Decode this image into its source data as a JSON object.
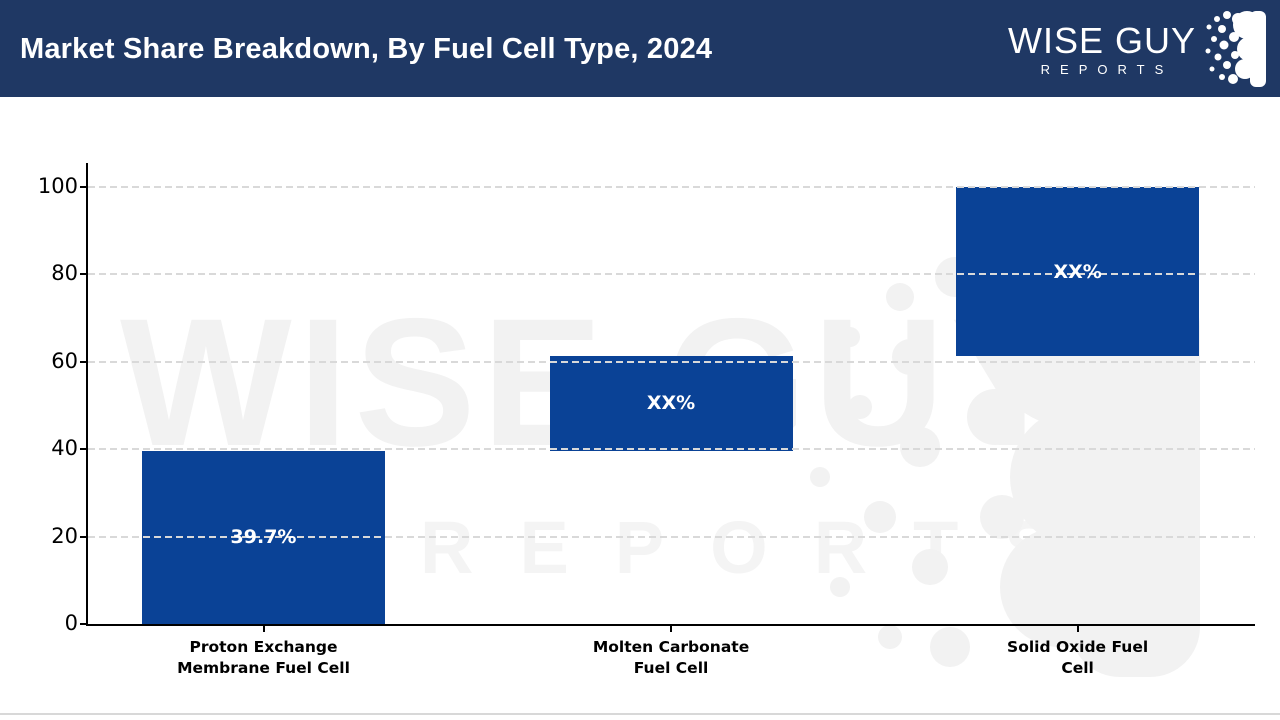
{
  "header": {
    "title": "Market Share Breakdown, By Fuel Cell Type, 2024",
    "logo": {
      "wordmark": "WISE GUY",
      "sub": "REPORTS"
    }
  },
  "watermark": {
    "big": "WISE GUY",
    "sub": "REPORTS"
  },
  "colors": {
    "header_bg": "#1f3864",
    "bar": "#0a4296",
    "grid": "#d9d9d9",
    "axis": "#000000",
    "bar_label_text": "#ffffff",
    "watermark": "#f2f2f2"
  },
  "chart_data": {
    "type": "bar",
    "subtype": "floating-segment-waterfall",
    "title": "Market Share Breakdown, By Fuel Cell Type, 2024",
    "categories": [
      "Proton Exchange Membrane Fuel Cell",
      "Molten Carbonate Fuel Cell",
      "Solid Oxide Fuel Cell"
    ],
    "category_label_lines": [
      [
        "Proton Exchange",
        "Membrane Fuel Cell"
      ],
      [
        "Molten Carbonate",
        "Fuel Cell"
      ],
      [
        "Solid Oxide Fuel",
        "Cell"
      ]
    ],
    "bars": [
      {
        "start": 0,
        "end": 39.7,
        "height": 39.7,
        "label": "39.7%"
      },
      {
        "start": 39.7,
        "end": 61.3,
        "height": 21.6,
        "label": "XX%"
      },
      {
        "start": 61.3,
        "end": 100,
        "height": 38.7,
        "label": "XX%"
      }
    ],
    "yticks": [
      0,
      20,
      40,
      60,
      80,
      100
    ],
    "ylim": [
      0,
      105.5
    ],
    "xlabel": "",
    "ylabel": "",
    "grid": "horizontal-dashed",
    "legend": "none",
    "bar_color": "#0a4296"
  }
}
